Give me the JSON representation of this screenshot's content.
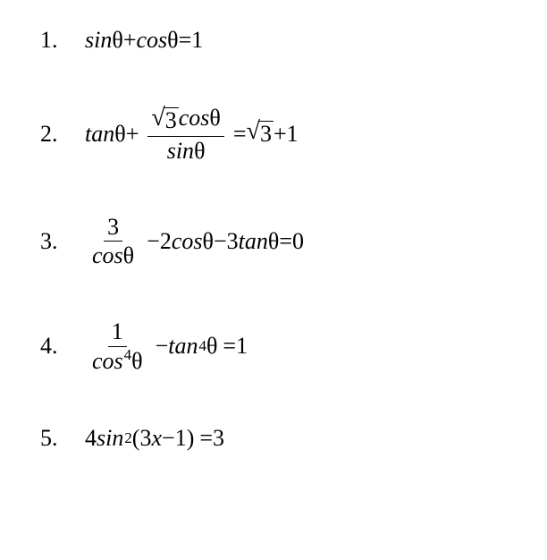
{
  "font": {
    "family": "Times New Roman",
    "size_pt": 26,
    "color": "#000000"
  },
  "background_color": "#ffffff",
  "problems": [
    {
      "number": "1.",
      "equation_text": "sinθ + cosθ = 1",
      "parts": {
        "lhs1": "sin",
        "theta1": "θ",
        "plus": " + ",
        "lhs2": "cos",
        "theta2": "θ",
        "eq": " = ",
        "rhs": "1"
      }
    },
    {
      "number": "2.",
      "equation_text": "tanθ + (√3 cosθ)/(sinθ) = √3 + 1",
      "parts": {
        "tan": "tan",
        "theta": "θ",
        "plus": " + ",
        "sqrt3": "3",
        "cos": "cos",
        "theta_cos": "θ",
        "sin": "sin",
        "theta_sin": "θ",
        "eq": " = ",
        "sqrt3_rhs": "3",
        "plusR": " + ",
        "one": "1"
      }
    },
    {
      "number": "3.",
      "equation_text": "3/cosθ − 2cosθ − 3tanθ = 0",
      "parts": {
        "three": "3",
        "cos": "cos",
        "theta_cos": "θ",
        "minus1": " − ",
        "two": "2",
        "cos2": "cos",
        "theta_cos2": "θ",
        "minus2": " − ",
        "three2": "3",
        "tan": "tan",
        "theta_tan": "θ",
        "eq": " = ",
        "zero": "0"
      }
    },
    {
      "number": "4.",
      "equation_text": "1/cos⁴θ − tan⁴θ = 1",
      "parts": {
        "one": "1",
        "cos": "cos",
        "sup4": "4",
        "theta_cos": "θ",
        "minus": " − ",
        "tan": "tan",
        "sup4b": "4",
        "theta_tan": "θ",
        "eq": " = ",
        "rhs": "1"
      }
    },
    {
      "number": "5.",
      "equation_text": "4sin²(3x − 1) = 3",
      "parts": {
        "four": "4",
        "sin": "sin",
        "sup2": "2",
        "lp": "(",
        "threex": "3",
        "x": "x",
        "minus": " − ",
        "oneA": "1",
        "rp": ")",
        "eq": " = ",
        "rhs": "3"
      }
    }
  ]
}
